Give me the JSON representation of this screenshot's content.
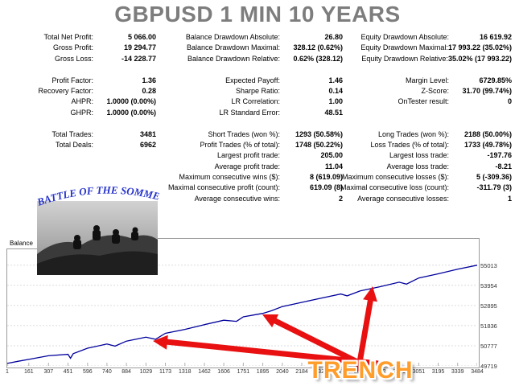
{
  "title": "GBPUSD 1 MIN 10 YEARS",
  "stats": {
    "col1": [
      [
        "Total Net Profit:",
        "5 066.00"
      ],
      [
        "Gross Profit:",
        "19 294.77"
      ],
      [
        "Gross Loss:",
        "-14 228.77"
      ],
      [
        "",
        ""
      ],
      [
        "Profit Factor:",
        "1.36"
      ],
      [
        "Recovery Factor:",
        "0.28"
      ],
      [
        "AHPR:",
        "1.0000 (0.00%)"
      ],
      [
        "GHPR:",
        "1.0000 (0.00%)"
      ],
      [
        "",
        ""
      ],
      [
        "Total Trades:",
        "3481"
      ],
      [
        "Total Deals:",
        "6962"
      ],
      [
        "",
        ""
      ],
      [
        "",
        ""
      ],
      [
        "",
        ""
      ],
      [
        "",
        ""
      ],
      [
        "",
        ""
      ]
    ],
    "col2": [
      [
        "Balance Drawdown Absolute:",
        "26.80"
      ],
      [
        "Balance Drawdown Maximal:",
        "328.12 (0.62%)"
      ],
      [
        "Balance Drawdown Relative:",
        "0.62% (328.12)"
      ],
      [
        "",
        ""
      ],
      [
        "Expected Payoff:",
        "1.46"
      ],
      [
        "Sharpe Ratio:",
        "0.14"
      ],
      [
        "LR Correlation:",
        "1.00"
      ],
      [
        "LR Standard Error:",
        "48.51"
      ],
      [
        "",
        ""
      ],
      [
        "Short Trades (won %):",
        "1293 (50.58%)"
      ],
      [
        "Profit Trades (% of total):",
        "1748 (50.22%)"
      ],
      [
        "Largest profit trade:",
        "205.00"
      ],
      [
        "Average profit trade:",
        "11.04"
      ],
      [
        "Maximum consecutive wins ($):",
        "8 (619.09)"
      ],
      [
        "Maximal consecutive profit (count):",
        "619.09 (8)"
      ],
      [
        "Average consecutive wins:",
        "2"
      ]
    ],
    "col3": [
      [
        "Equity Drawdown Absolute:",
        "16 619.92"
      ],
      [
        "Equity Drawdown Maximal:",
        "17 993.22 (35.02%)"
      ],
      [
        "Equity Drawdown Relative:",
        "35.02% (17 993.22)"
      ],
      [
        "",
        ""
      ],
      [
        "Margin Level:",
        "6729.85%"
      ],
      [
        "Z-Score:",
        "31.70 (99.74%)"
      ],
      [
        "OnTester result:",
        "0"
      ],
      [
        "",
        ""
      ],
      [
        "",
        ""
      ],
      [
        "Long Trades (won %):",
        "2188 (50.00%)"
      ],
      [
        "Loss Trades (% of total):",
        "1733 (49.78%)"
      ],
      [
        "Largest loss trade:",
        "-197.76"
      ],
      [
        "Average loss trade:",
        "-8.21"
      ],
      [
        "Maximum consecutive losses ($):",
        "5 (-309.36)"
      ],
      [
        "Maximal consecutive loss (count):",
        "-311.79 (3)"
      ],
      [
        "Average consecutive losses:",
        "1"
      ]
    ]
  },
  "photo": {
    "caption": "BATTLE OF THE SOMME"
  },
  "annotation": {
    "trench": "TRENCH"
  },
  "colors": {
    "balance_line": "#00009c",
    "arrow_red": "#e81010",
    "trench_orange": "#ff9c2a",
    "title_gray": "#7d7d7d"
  },
  "chart_data": {
    "type": "line",
    "title": "Balance",
    "xlabel": "",
    "ylabel": "",
    "grid": true,
    "legend_position": "none",
    "xlim": [
      1,
      3484
    ],
    "ylim": [
      49719,
      56400
    ],
    "x_ticks": [
      1,
      161,
      307,
      451,
      596,
      740,
      884,
      1029,
      1173,
      1318,
      1462,
      1606,
      1751,
      1895,
      2040,
      2184,
      2328,
      2473,
      2617,
      2762,
      2906,
      3051,
      3195,
      3339,
      3484
    ],
    "y_ticks": [
      49719,
      50777,
      51836,
      52895,
      53954,
      55013
    ],
    "series": [
      {
        "name": "Balance",
        "x": [
          1,
          80,
          161,
          307,
          451,
          470,
          490,
          596,
          740,
          800,
          884,
          1029,
          1100,
          1173,
          1318,
          1462,
          1606,
          1700,
          1751,
          1895,
          1960,
          2040,
          2184,
          2328,
          2473,
          2520,
          2617,
          2762,
          2906,
          2960,
          3051,
          3195,
          3339,
          3484
        ],
        "y": [
          49850,
          49960,
          50060,
          50250,
          50330,
          50120,
          50360,
          50650,
          50870,
          50760,
          51020,
          51230,
          51120,
          51430,
          51640,
          51890,
          52120,
          52060,
          52300,
          52480,
          52620,
          52840,
          53060,
          53280,
          53500,
          53400,
          53660,
          53880,
          54120,
          54020,
          54340,
          54560,
          54800,
          55013
        ]
      }
    ]
  }
}
